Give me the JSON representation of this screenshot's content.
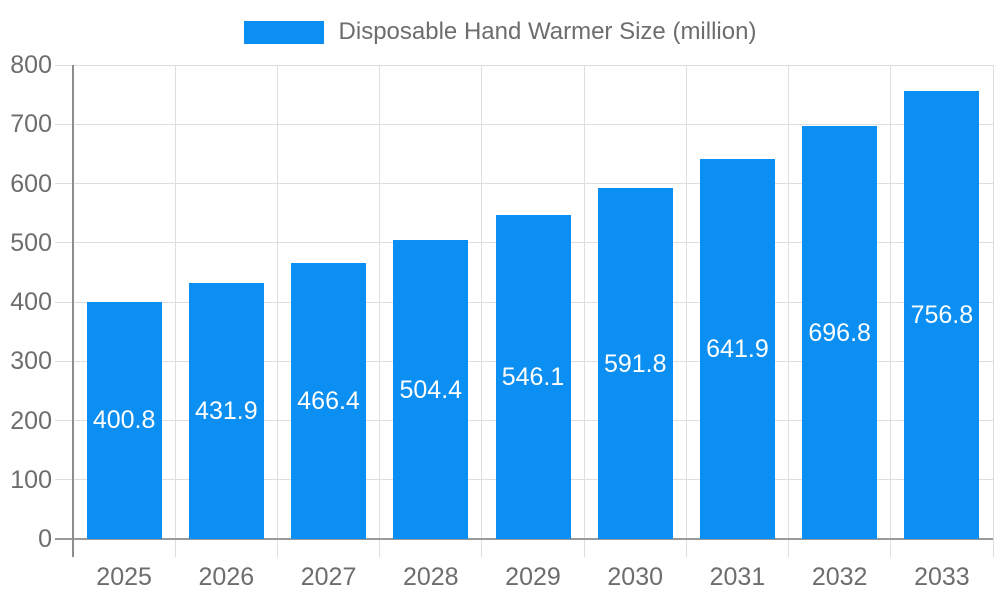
{
  "chart_data": {
    "type": "bar",
    "title": "Disposable Hand Warmer Size (million)",
    "series": [
      {
        "name": "Disposable Hand Warmer Size (million)",
        "values": [
          400.8,
          431.9,
          466.4,
          504.4,
          546.1,
          591.8,
          641.9,
          696.8,
          756.8
        ]
      }
    ],
    "categories": [
      "2025",
      "2026",
      "2027",
      "2028",
      "2029",
      "2030",
      "2031",
      "2032",
      "2033"
    ],
    "value_labels": [
      "400.8",
      "431.9",
      "466.4",
      "504.4",
      "546.1",
      "591.8",
      "641.9",
      "696.8",
      "756.8"
    ],
    "xlabel": "",
    "ylabel": "",
    "ylim": [
      0,
      800
    ],
    "yticks": [
      0,
      100,
      200,
      300,
      400,
      500,
      600,
      700,
      800
    ],
    "grid": true,
    "legend_position": "top-center",
    "colors": {
      "bar": "#0b8ff2",
      "value_text": "#ffffff",
      "axis_text": "#6d6d6d",
      "grid": "#dedede",
      "axis_line": "#9a9a9a",
      "background": "#ffffff"
    }
  }
}
